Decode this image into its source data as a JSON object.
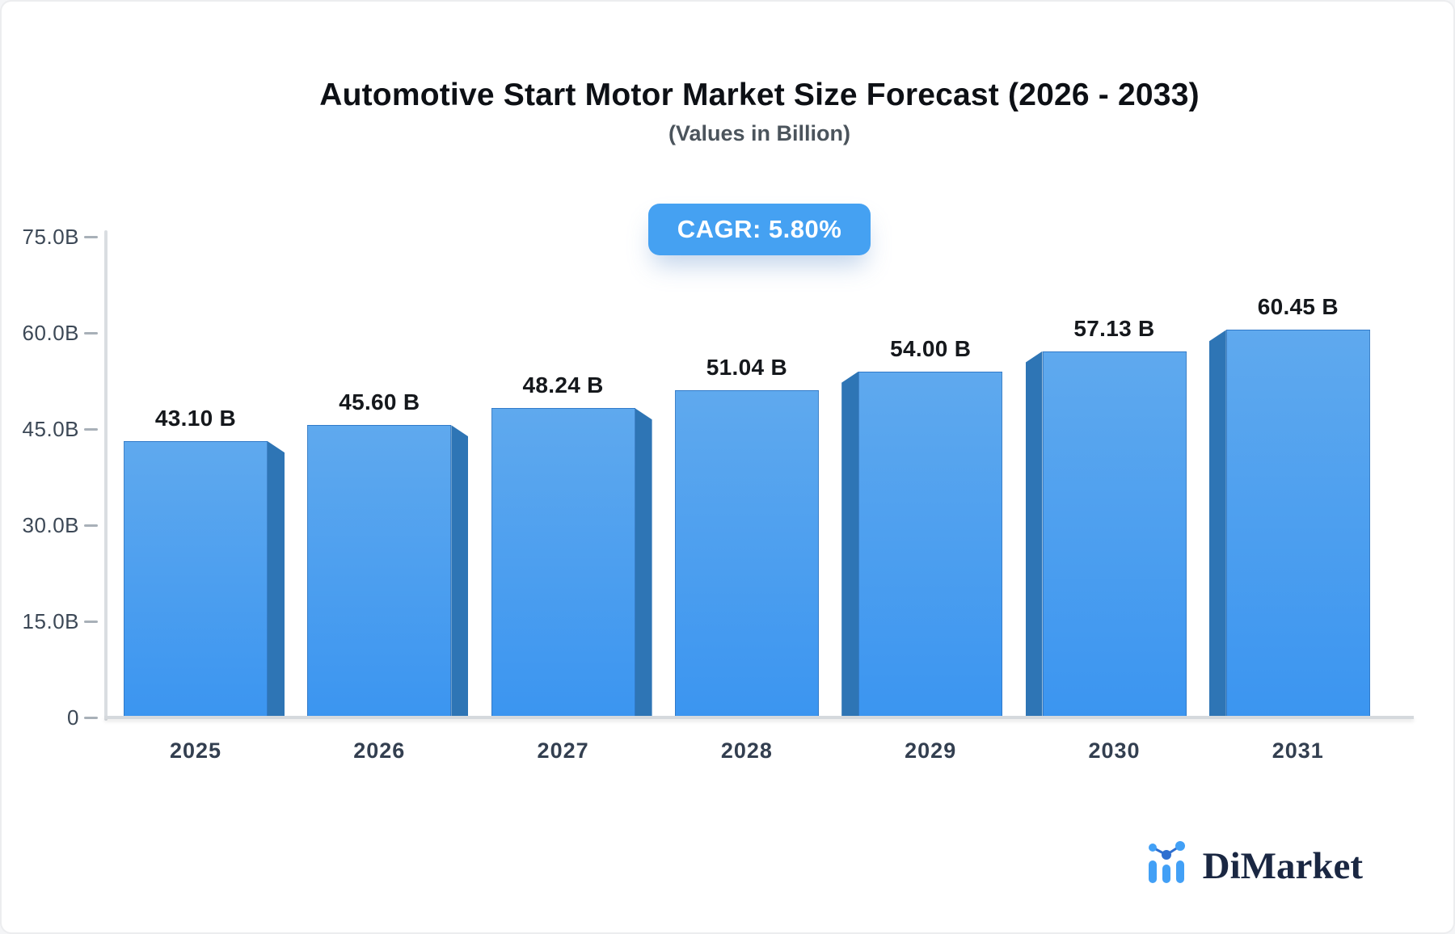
{
  "chart": {
    "title": "Automotive Start Motor Market Size Forecast (2026 - 2033)",
    "subtitle": "(Values in Billion)",
    "cagr_badge": "CAGR: 5.80%"
  },
  "chart_data": {
    "type": "bar",
    "title": "Automotive Start Motor Market Size Forecast (2026 - 2033)",
    "subtitle": "(Values in Billion)",
    "annotation": "CAGR: 5.80%",
    "categories": [
      "2025",
      "2026",
      "2027",
      "2028",
      "2029",
      "2030",
      "2031"
    ],
    "values": [
      43.1,
      45.6,
      48.24,
      51.04,
      54.0,
      57.13,
      60.45
    ],
    "value_labels": [
      "43.10 B",
      "45.60 B",
      "48.24 B",
      "51.04 B",
      "54.00 B",
      "57.13 B",
      "60.45 B"
    ],
    "ylim": [
      0,
      75
    ],
    "yticks": [
      {
        "value": 75,
        "label": "75.0B"
      },
      {
        "value": 60,
        "label": "60.0B"
      },
      {
        "value": 45,
        "label": "45.0B"
      },
      {
        "value": 30,
        "label": "30.0B"
      },
      {
        "value": 15,
        "label": "15.0B"
      },
      {
        "value": 0,
        "label": "0"
      }
    ],
    "grid": false,
    "legend": false,
    "bar_style": "3d-extruded",
    "colors": {
      "bar_face_top": "#5FA9EE",
      "bar_face_bottom": "#3B95F0",
      "bar_side": "#2E75B5",
      "badge_bg": "#45A1F2",
      "badge_text": "#FFFFFF",
      "axis_line": "#D8DCE0",
      "tick_text": "#3C4856",
      "category_text": "#333F50",
      "value_text": "#15181C",
      "title_text": "#0D1015",
      "subtitle_text": "#4B545C",
      "logo_text": "#1A2742",
      "logo_icon_blue": "#42A0F6",
      "logo_line_blue": "#2F6FD0"
    }
  },
  "brand": {
    "name": "DiMarket"
  }
}
